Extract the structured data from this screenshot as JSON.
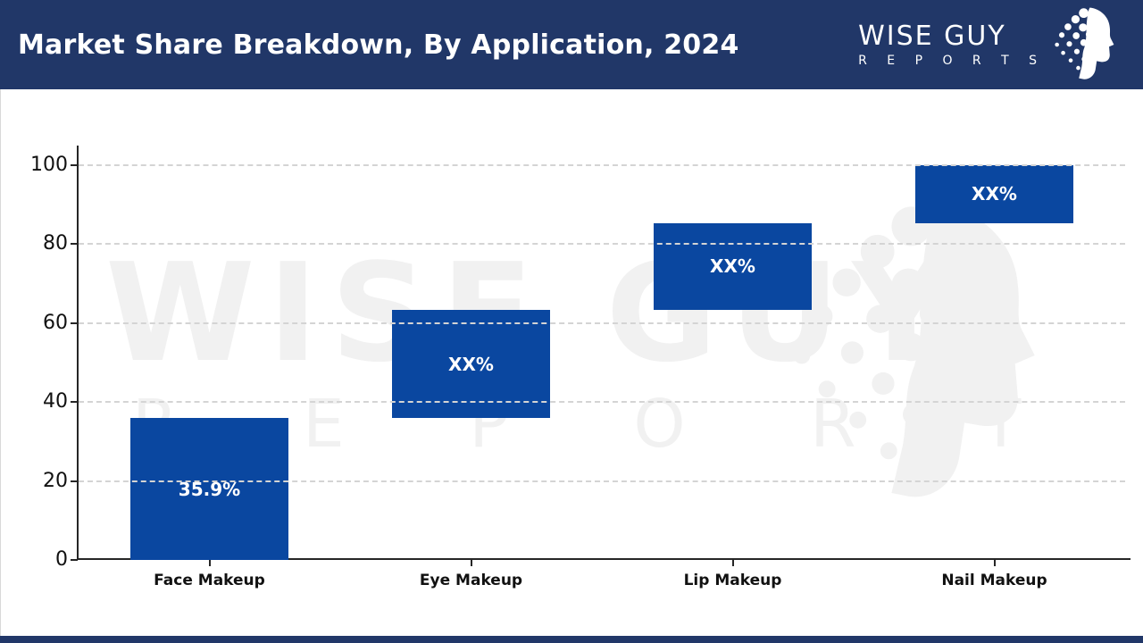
{
  "header": {
    "title": "Market Share Breakdown, By Application, 2024",
    "logo": {
      "line1": "WISE GUY",
      "line2": "R E P O R T S"
    }
  },
  "watermark": {
    "line1": "WISE GUY",
    "line2": "R E P O R T S"
  },
  "colors": {
    "header_bg": "#213768",
    "footer_bg": "#213768",
    "bar": "#0a47a0",
    "watermark": "#f1f1f1",
    "grid": "#d4d4d4",
    "axis": "#262626"
  },
  "chart_data": {
    "type": "bar",
    "subtype": "waterfall",
    "title": "Market Share Breakdown, By Application, 2024",
    "categories": [
      "Face Makeup",
      "Eye Makeup",
      "Lip Makeup",
      "Nail Makeup"
    ],
    "segments": [
      {
        "category": "Face Makeup",
        "start": 0,
        "end": 35.9,
        "label": "35.9%"
      },
      {
        "category": "Eye Makeup",
        "start": 35.9,
        "end": 63.4,
        "label": "XX%"
      },
      {
        "category": "Lip Makeup",
        "start": 63.4,
        "end": 85.3,
        "label": "XX%"
      },
      {
        "category": "Nail Makeup",
        "start": 85.3,
        "end": 100,
        "label": "XX%"
      }
    ],
    "xlabel": "",
    "ylabel": "",
    "ylim": [
      0,
      100
    ],
    "yticks": [
      0,
      20,
      40,
      60,
      80,
      100
    ],
    "grid": "horizontal dashed, drawn over bars",
    "legend": "none",
    "bar_color": "#0a47a0",
    "value_label_color": "#ffffff"
  }
}
